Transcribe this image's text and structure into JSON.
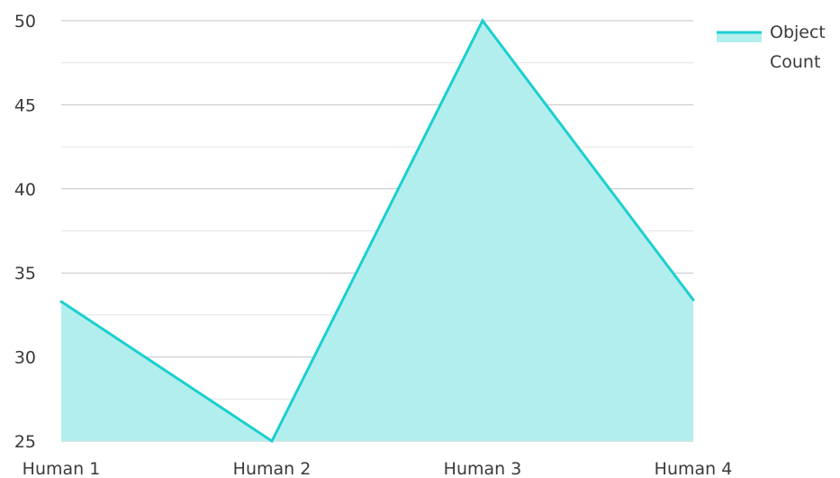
{
  "chart_data": {
    "type": "area",
    "categories": [
      "Human 1",
      "Human 2",
      "Human 3",
      "Human 4"
    ],
    "series": [
      {
        "name": "Object Count",
        "values": [
          33.3,
          25,
          50,
          33.4
        ]
      }
    ],
    "title": "",
    "xlabel": "",
    "ylabel": "",
    "ylim": [
      25,
      50
    ],
    "yticks": [
      "25",
      "30",
      "35",
      "40",
      "45",
      "50"
    ],
    "grid": true,
    "legend": {
      "placement": "top-right",
      "label_lines": [
        "Object",
        "Count"
      ]
    },
    "colors": {
      "line": "#1ccfcf",
      "fill": "#b3eeee",
      "grid_major": "#c4c4c4",
      "grid_minor": "#e4e4e4",
      "text": "#3a3a3a"
    }
  }
}
